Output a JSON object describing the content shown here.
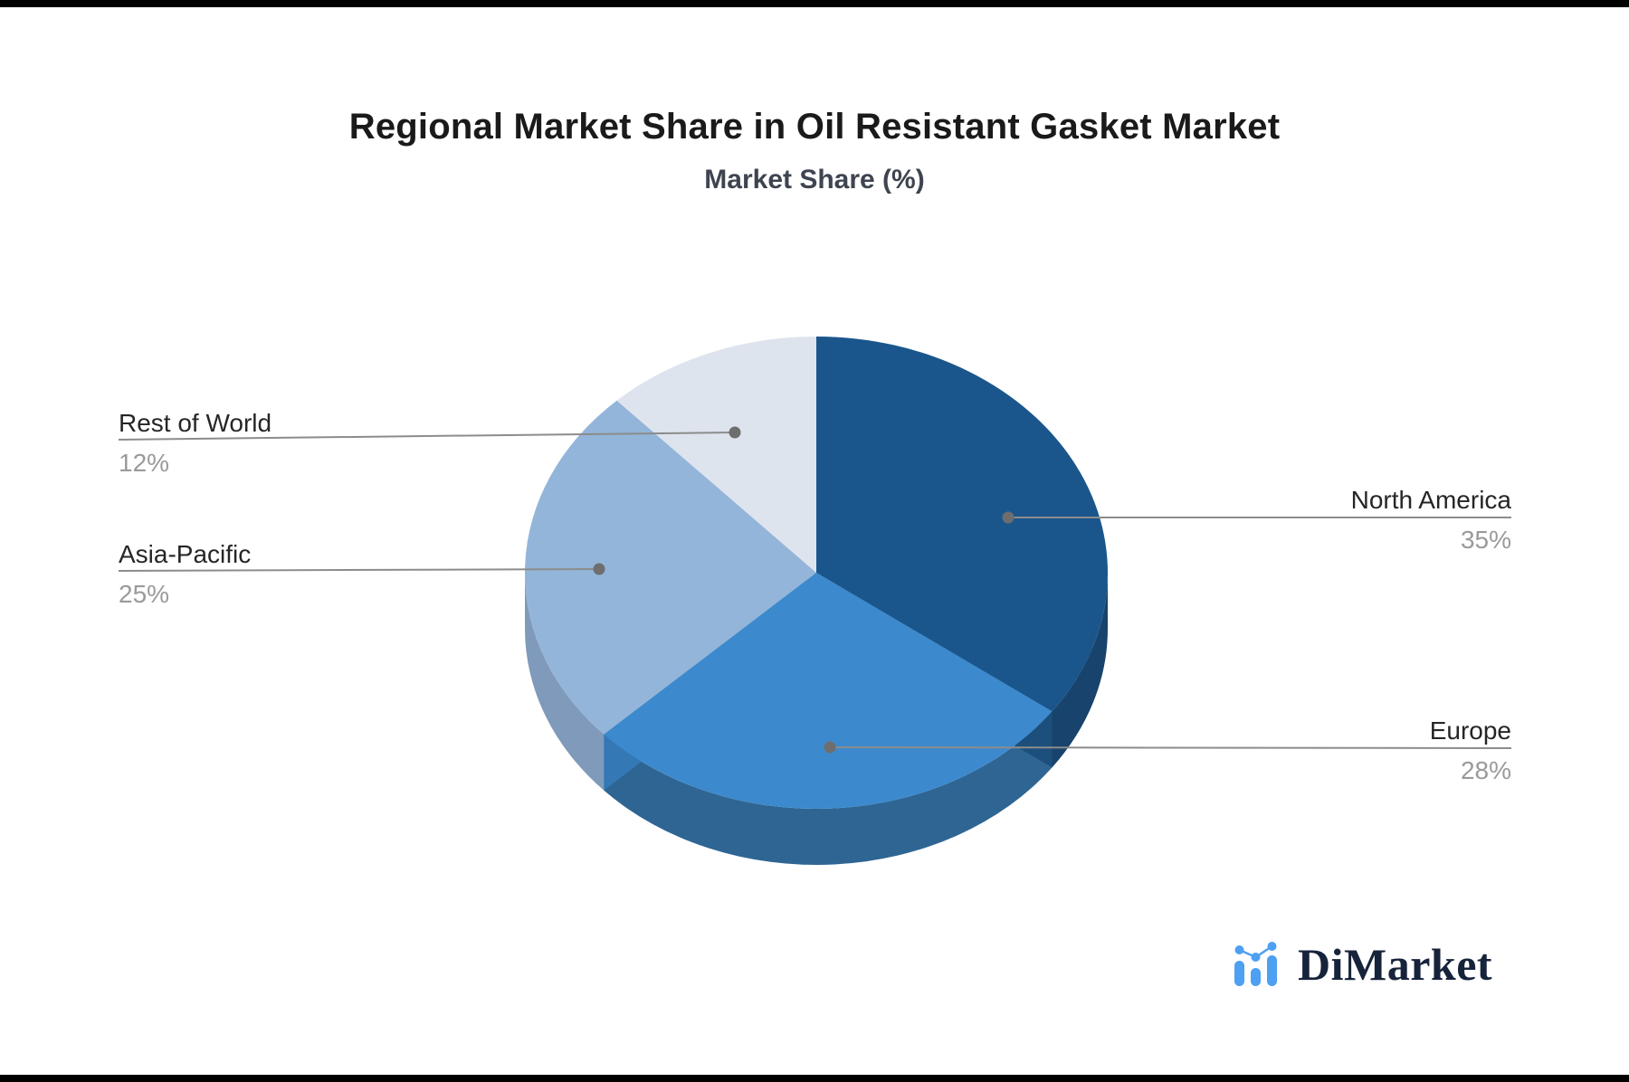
{
  "chart_data": {
    "type": "pie",
    "style": "3d",
    "title": "Regional Market Share in Oil Resistant Gasket Market",
    "subtitle": "Market Share (%)",
    "categories": [
      "North America",
      "Europe",
      "Asia-Pacific",
      "Rest of World"
    ],
    "values": [
      35,
      28,
      25,
      12
    ],
    "unit": "%",
    "start_angle_deg": 0,
    "direction": "clockwise",
    "legend_position": "callout-labels",
    "colors": {
      "slices": [
        "#1A568C",
        "#3C8ACD",
        "#93B5D9",
        "#DEE4EE"
      ],
      "rims": [
        "#17436C",
        "#2E6593",
        "#7F9ABA",
        "#B9C4D4"
      ],
      "boundary_walls": [
        "#1D4F7C",
        "#3478B5"
      ],
      "callout_line": "#8C8C8C",
      "callout_dot": "#6E6E6E"
    }
  },
  "labels": [
    {
      "name": "North America",
      "value": "35%"
    },
    {
      "name": "Europe",
      "value": "28%"
    },
    {
      "name": "Asia-Pacific",
      "value": "25%"
    },
    {
      "name": "Rest of World",
      "value": "12%"
    }
  ],
  "branding": {
    "logo_text": "DiMarket",
    "logo_icon": "bar-line-chart-icon",
    "logo_accent_color": "#4DA0F2"
  }
}
